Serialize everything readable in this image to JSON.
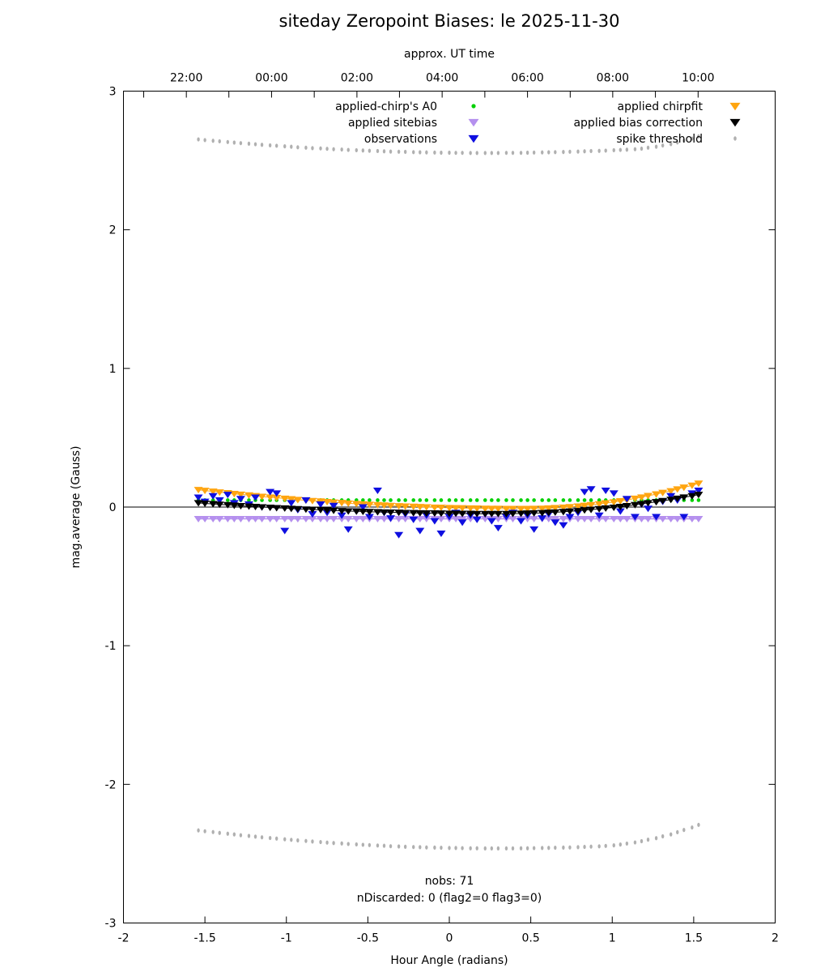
{
  "chart_data": {
    "type": "scatter",
    "title": "siteday Zeropoint Biases:  le  2025-11-30",
    "top_axis": {
      "title": "approx. UT time",
      "ticks": [
        {
          "x": -1.876,
          "label": ""
        },
        {
          "x": -1.614,
          "label": "22:00"
        },
        {
          "x": -1.353,
          "label": ""
        },
        {
          "x": -1.091,
          "label": "00:00"
        },
        {
          "x": -0.829,
          "label": ""
        },
        {
          "x": -0.567,
          "label": "02:00"
        },
        {
          "x": -0.306,
          "label": ""
        },
        {
          "x": -0.044,
          "label": "04:00"
        },
        {
          "x": 0.218,
          "label": ""
        },
        {
          "x": 0.48,
          "label": "06:00"
        },
        {
          "x": 0.742,
          "label": ""
        },
        {
          "x": 1.003,
          "label": "08:00"
        },
        {
          "x": 1.265,
          "label": ""
        },
        {
          "x": 1.527,
          "label": "10:00"
        }
      ]
    },
    "x_axis": {
      "title": "Hour Angle (radians)",
      "min": -2,
      "max": 2,
      "ticks": [
        {
          "v": -2,
          "label": "-2"
        },
        {
          "v": -1.5,
          "label": "-1.5"
        },
        {
          "v": -1,
          "label": "-1"
        },
        {
          "v": -0.5,
          "label": "-0.5"
        },
        {
          "v": 0,
          "label": "0"
        },
        {
          "v": 0.5,
          "label": "0.5"
        },
        {
          "v": 1,
          "label": "1"
        },
        {
          "v": 1.5,
          "label": "1.5"
        },
        {
          "v": 2,
          "label": "2"
        }
      ]
    },
    "y_axis": {
      "title": "mag.average (Gauss)",
      "min": -3,
      "max": 3,
      "ticks": [
        {
          "v": 3,
          "label": "3"
        },
        {
          "v": 2,
          "label": "2"
        },
        {
          "v": 1,
          "label": "1"
        },
        {
          "v": 0,
          "label": "0"
        },
        {
          "v": -1,
          "label": "-1"
        },
        {
          "v": -2,
          "label": "-2"
        },
        {
          "v": -3,
          "label": "-3"
        }
      ]
    },
    "annotations": {
      "nobs": "nobs: 71",
      "ndiscarded": "nDiscarded: 0  (flag2=0  flag3=0)"
    },
    "zero_line": 0,
    "x": [
      -1.54,
      -1.5,
      -1.45,
      -1.41,
      -1.36,
      -1.32,
      -1.28,
      -1.23,
      -1.19,
      -1.15,
      -1.1,
      -1.06,
      -1.01,
      -0.97,
      -0.93,
      -0.88,
      -0.84,
      -0.79,
      -0.75,
      -0.71,
      -0.66,
      -0.62,
      -0.57,
      -0.53,
      -0.49,
      -0.44,
      -0.4,
      -0.36,
      -0.31,
      -0.27,
      -0.22,
      -0.18,
      -0.14,
      -0.09,
      -0.05,
      0,
      0.04,
      0.08,
      0.13,
      0.17,
      0.22,
      0.26,
      0.3,
      0.35,
      0.39,
      0.44,
      0.48,
      0.52,
      0.57,
      0.61,
      0.65,
      0.7,
      0.74,
      0.79,
      0.83,
      0.87,
      0.92,
      0.96,
      1.01,
      1.05,
      1.09,
      1.14,
      1.18,
      1.22,
      1.27,
      1.31,
      1.36,
      1.4,
      1.44,
      1.49,
      1.53
    ],
    "series": [
      {
        "name": "applied-chirp's A0",
        "marker": "dot",
        "color": "#00d000",
        "line": false,
        "values": [
          0.05,
          0.05,
          0.05,
          0.05,
          0.05,
          0.05,
          0.05,
          0.05,
          0.05,
          0.05,
          0.05,
          0.05,
          0.05,
          0.05,
          0.05,
          0.05,
          0.05,
          0.05,
          0.05,
          0.05,
          0.05,
          0.05,
          0.05,
          0.05,
          0.05,
          0.05,
          0.05,
          0.05,
          0.05,
          0.05,
          0.05,
          0.05,
          0.05,
          0.05,
          0.05,
          0.05,
          0.05,
          0.05,
          0.05,
          0.05,
          0.05,
          0.05,
          0.05,
          0.05,
          0.05,
          0.05,
          0.05,
          0.05,
          0.05,
          0.05,
          0.05,
          0.05,
          0.05,
          0.05,
          0.05,
          0.05,
          0.05,
          0.05,
          0.05,
          0.05,
          0.05,
          0.05,
          0.05,
          0.05,
          0.05,
          0.05,
          0.05,
          0.05,
          0.05,
          0.05,
          0.05
        ]
      },
      {
        "name": "applied chirpfit",
        "marker": "triangle",
        "color": "#ffa510",
        "line": true,
        "values": [
          0.125,
          0.119,
          0.113,
          0.107,
          0.102,
          0.096,
          0.091,
          0.086,
          0.081,
          0.076,
          0.071,
          0.067,
          0.062,
          0.058,
          0.053,
          0.049,
          0.045,
          0.042,
          0.038,
          0.034,
          0.031,
          0.027,
          0.024,
          0.021,
          0.018,
          0.016,
          0.013,
          0.01,
          0.008,
          0.006,
          0.004,
          0.002,
          0,
          -0.002,
          -0.003,
          -0.005,
          -0.006,
          -0.007,
          -0.008,
          -0.009,
          -0.01,
          -0.011,
          -0.011,
          -0.012,
          -0.012,
          -0.012,
          -0.012,
          -0.011,
          -0.01,
          -0.008,
          -0.005,
          -0.002,
          0.001,
          0.006,
          0.011,
          0.016,
          0.022,
          0.029,
          0.036,
          0.044,
          0.052,
          0.062,
          0.071,
          0.082,
          0.093,
          0.104,
          0.116,
          0.129,
          0.142,
          0.156,
          0.171
        ]
      },
      {
        "name": "applied sitebias",
        "marker": "triangle",
        "color": "#b590ee",
        "line": true,
        "values": [
          -0.085,
          -0.085,
          -0.085,
          -0.085,
          -0.085,
          -0.085,
          -0.085,
          -0.085,
          -0.085,
          -0.085,
          -0.085,
          -0.085,
          -0.085,
          -0.085,
          -0.085,
          -0.085,
          -0.085,
          -0.085,
          -0.085,
          -0.085,
          -0.085,
          -0.085,
          -0.085,
          -0.085,
          -0.085,
          -0.085,
          -0.085,
          -0.085,
          -0.085,
          -0.085,
          -0.085,
          -0.085,
          -0.085,
          -0.085,
          -0.085,
          -0.085,
          -0.085,
          -0.085,
          -0.085,
          -0.085,
          -0.085,
          -0.085,
          -0.085,
          -0.085,
          -0.085,
          -0.085,
          -0.085,
          -0.085,
          -0.085,
          -0.085,
          -0.085,
          -0.085,
          -0.085,
          -0.085,
          -0.085,
          -0.085,
          -0.085,
          -0.085,
          -0.085,
          -0.085,
          -0.085,
          -0.085,
          -0.085,
          -0.085,
          -0.085,
          -0.085,
          -0.085,
          -0.085,
          -0.085,
          -0.085,
          -0.085
        ]
      },
      {
        "name": "observations",
        "marker": "triangle",
        "color": "#0f0fe0",
        "line": false,
        "values": [
          0.07,
          0.04,
          0.08,
          0.05,
          0.09,
          0.03,
          0.06,
          0.02,
          0.07,
          0,
          0.11,
          0.1,
          -0.17,
          0.03,
          -0.02,
          0.05,
          -0.05,
          0.02,
          -0.04,
          0.01,
          -0.06,
          -0.16,
          -0.03,
          0,
          -0.07,
          0.12,
          -0.04,
          -0.08,
          -0.2,
          -0.05,
          -0.09,
          -0.17,
          -0.06,
          -0.1,
          -0.19,
          -0.07,
          -0.04,
          -0.11,
          -0.06,
          -0.09,
          -0.05,
          -0.1,
          -0.15,
          -0.07,
          -0.04,
          -0.1,
          -0.06,
          -0.16,
          -0.08,
          -0.05,
          -0.11,
          -0.13,
          -0.07,
          -0.04,
          0.11,
          0.13,
          -0.06,
          0.12,
          0.1,
          -0.03,
          0.06,
          -0.07,
          0.02,
          -0.01,
          -0.07,
          0.04,
          0.08,
          0.05,
          -0.07,
          0.1,
          0.12
        ]
      },
      {
        "name": "applied bias correction",
        "marker": "triangle",
        "color": "#000000",
        "line": true,
        "values": [
          0.03,
          0.026,
          0.023,
          0.019,
          0.016,
          0.012,
          0.009,
          0.006,
          0.003,
          0,
          -0.003,
          -0.006,
          -0.008,
          -0.011,
          -0.013,
          -0.016,
          -0.018,
          -0.02,
          -0.023,
          -0.025,
          -0.027,
          -0.029,
          -0.03,
          -0.032,
          -0.034,
          -0.035,
          -0.037,
          -0.038,
          -0.039,
          -0.041,
          -0.042,
          -0.043,
          -0.044,
          -0.044,
          -0.045,
          -0.046,
          -0.046,
          -0.047,
          -0.047,
          -0.048,
          -0.048,
          -0.048,
          -0.048,
          -0.048,
          -0.047,
          -0.046,
          -0.045,
          -0.043,
          -0.042,
          -0.039,
          -0.037,
          -0.034,
          -0.03,
          -0.027,
          -0.022,
          -0.018,
          -0.013,
          -0.008,
          -0.003,
          0.003,
          0.009,
          0.016,
          0.023,
          0.03,
          0.037,
          0.045,
          0.054,
          0.062,
          0.071,
          0.08,
          0.09
        ]
      },
      {
        "name": "spike threshold",
        "marker": "smalldot",
        "color": "#b0b0b0",
        "line": false,
        "values_upper": [
          2.652,
          2.647,
          2.642,
          2.638,
          2.633,
          2.629,
          2.625,
          2.621,
          2.617,
          2.613,
          2.609,
          2.606,
          2.602,
          2.599,
          2.595,
          2.592,
          2.589,
          2.587,
          2.584,
          2.581,
          2.579,
          2.576,
          2.574,
          2.572,
          2.57,
          2.568,
          2.566,
          2.564,
          2.563,
          2.562,
          2.56,
          2.559,
          2.558,
          2.557,
          2.556,
          2.556,
          2.555,
          2.555,
          2.554,
          2.554,
          2.554,
          2.554,
          2.554,
          2.555,
          2.555,
          2.555,
          2.556,
          2.557,
          2.558,
          2.559,
          2.56,
          2.561,
          2.563,
          2.564,
          2.566,
          2.568,
          2.569,
          2.571,
          2.574,
          2.576,
          2.578,
          2.581,
          2.585,
          2.592,
          2.599,
          2.608,
          2.618,
          2.63,
          2.643,
          2.658,
          2.674
        ],
        "values_lower": [
          -2.332,
          -2.338,
          -2.344,
          -2.35,
          -2.356,
          -2.361,
          -2.367,
          -2.372,
          -2.377,
          -2.382,
          -2.387,
          -2.391,
          -2.396,
          -2.4,
          -2.404,
          -2.408,
          -2.412,
          -2.416,
          -2.42,
          -2.423,
          -2.426,
          -2.43,
          -2.433,
          -2.436,
          -2.438,
          -2.441,
          -2.443,
          -2.446,
          -2.448,
          -2.45,
          -2.452,
          -2.453,
          -2.455,
          -2.456,
          -2.457,
          -2.459,
          -2.459,
          -2.46,
          -2.461,
          -2.461,
          -2.462,
          -2.462,
          -2.462,
          -2.462,
          -2.462,
          -2.461,
          -2.461,
          -2.46,
          -2.459,
          -2.458,
          -2.457,
          -2.456,
          -2.455,
          -2.453,
          -2.451,
          -2.449,
          -2.447,
          -2.444,
          -2.44,
          -2.434,
          -2.427,
          -2.419,
          -2.41,
          -2.399,
          -2.388,
          -2.375,
          -2.361,
          -2.345,
          -2.329,
          -2.311,
          -2.292
        ]
      }
    ],
    "legend_columns": [
      [
        "applied-chirp's A0",
        "applied sitebias",
        "observations"
      ],
      [
        "applied chirpfit",
        "applied bias correction",
        "spike threshold"
      ]
    ],
    "grid": false,
    "legend_position": "top-inside"
  }
}
